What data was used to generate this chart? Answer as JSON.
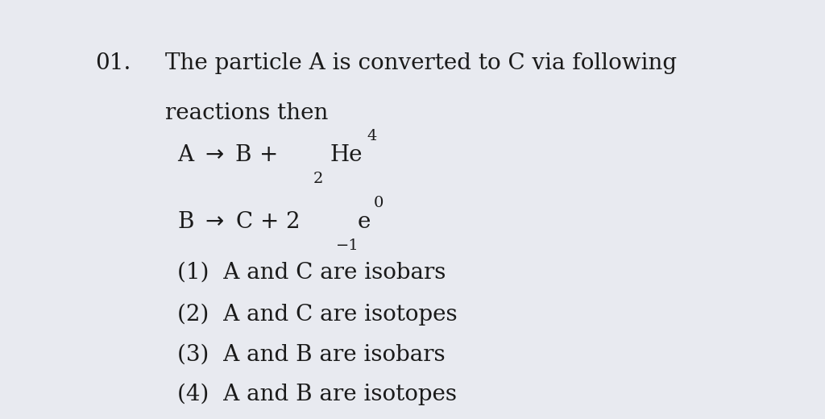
{
  "background_color": "#e8eaf0",
  "text_color": "#1a1a1a",
  "question_number": "01.",
  "question_text_line1": "The particle A is converted to C via following",
  "question_text_line2": "reactions then",
  "options": [
    "(1)  A and C are isobars",
    "(2)  A and C are isotopes",
    "(3)  A and B are isobars",
    "(4)  A and B are isotopes"
  ],
  "font_size_main": 20,
  "font_size_small": 14,
  "font_size_number": 20,
  "font_size_question": 20,
  "font_size_options": 20
}
